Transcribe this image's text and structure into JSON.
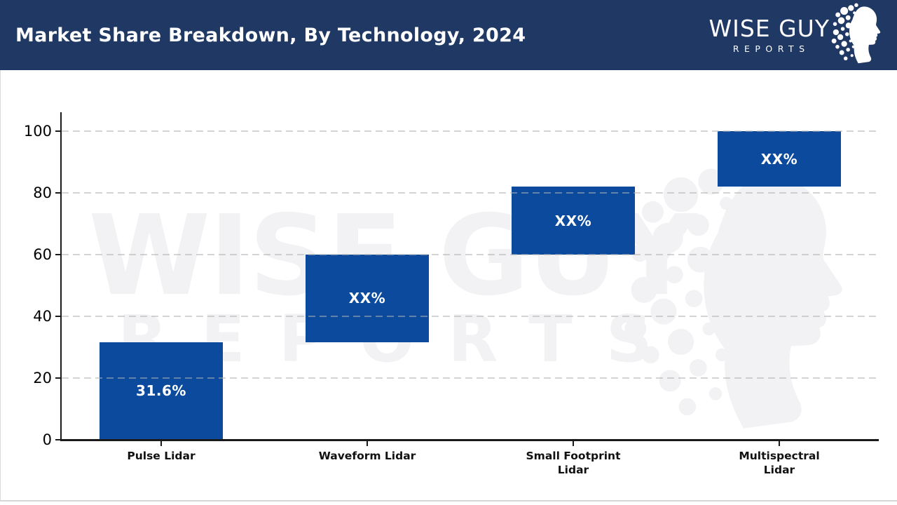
{
  "header": {
    "title": "Market Share Breakdown, By Technology, 2024"
  },
  "logo": {
    "line1": "WISE GUY",
    "line2": "REPORTS",
    "icon": "dotted-head-profile"
  },
  "watermark": {
    "line1": "WISE GUY",
    "line2": "REPORTS",
    "icon": "dotted-head-profile"
  },
  "colors": {
    "header_bg": "#203864",
    "bar_blue": "#0B4A9C",
    "watermark_gray": "#F2F2F4",
    "gridline_gray": "#B0B0B0",
    "axis_black": "#1a1a1a"
  },
  "chart_data": {
    "type": "bar",
    "subtype": "floating-waterfall",
    "title": "Market Share Breakdown, By Technology, 2024",
    "categories": [
      "Pulse Lidar",
      "Waveform Lidar",
      "Small Footprint\nLidar",
      "Multispectral\nLidar"
    ],
    "segments": [
      {
        "category": "Pulse Lidar",
        "start": 0,
        "end": 31.6,
        "label": "31.6%"
      },
      {
        "category": "Waveform Lidar",
        "start": 31.6,
        "end": 60,
        "label": "XX%"
      },
      {
        "category": "Small Footprint Lidar",
        "start": 60,
        "end": 82,
        "label": "XX%"
      },
      {
        "category": "Multispectral Lidar",
        "start": 82,
        "end": 100,
        "label": "XX%"
      }
    ],
    "yticks": [
      0,
      20,
      40,
      60,
      80,
      100
    ],
    "ylim": [
      0,
      105
    ],
    "xlabel": "",
    "ylabel": "",
    "grid": "horizontal-dashed",
    "legend": "none",
    "bar_color": "#0B4A9C",
    "value_label_color": "#ffffff"
  }
}
